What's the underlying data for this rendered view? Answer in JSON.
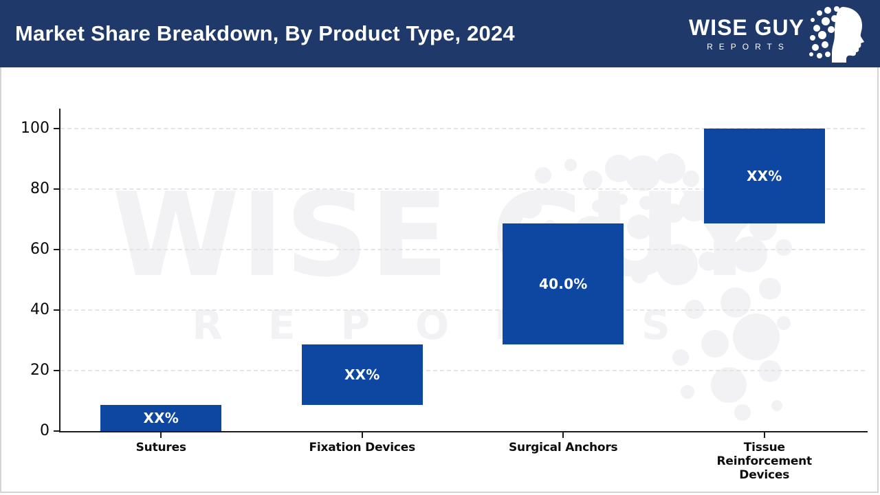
{
  "header": {
    "title": "Market Share Breakdown, By Product Type, 2024"
  },
  "logo": {
    "name_line": "WISE GUY",
    "sub_line": "REPORTS"
  },
  "watermark": {
    "name_line": "WISE GUY",
    "sub_line": "REPORTS"
  },
  "colors": {
    "header_bg": "#1f3a6a",
    "bar_fill": "#0d47a1",
    "bar_label_text": "#ffffff",
    "axis": "#1a1a1a",
    "gridline": "#e4e4e4",
    "watermark": "#f2f2f4",
    "title_text": "#ffffff"
  },
  "chart_data": {
    "type": "bar",
    "subtype": "waterfall-floating-bars",
    "title": "Market Share Breakdown, By Product Type, 2024",
    "categories": [
      "Sutures",
      "Fixation Devices",
      "Surgical Anchors",
      "Tissue Reinforcement Devices"
    ],
    "category_lines": [
      [
        "Sutures"
      ],
      [
        "Fixation Devices"
      ],
      [
        "Surgical Anchors"
      ],
      [
        "Tissue",
        "Reinforcement",
        "Devices"
      ]
    ],
    "bars": [
      {
        "category": "Sutures",
        "base": 0,
        "top": 8.6,
        "value": 8.6,
        "label": "XX%"
      },
      {
        "category": "Fixation Devices",
        "base": 8.6,
        "top": 28.6,
        "value": 20.0,
        "label": "XX%"
      },
      {
        "category": "Surgical Anchors",
        "base": 28.6,
        "top": 68.6,
        "value": 40.0,
        "label": "40.0%"
      },
      {
        "category": "Tissue Reinforcement Devices",
        "base": 68.6,
        "top": 100,
        "value": 31.4,
        "label": "XX%"
      }
    ],
    "xlabel": "",
    "ylabel": "",
    "ylim": [
      0,
      106
    ],
    "yticks": [
      0,
      20,
      40,
      60,
      80,
      100
    ],
    "grid": "horizontal dashed",
    "legend": null
  }
}
